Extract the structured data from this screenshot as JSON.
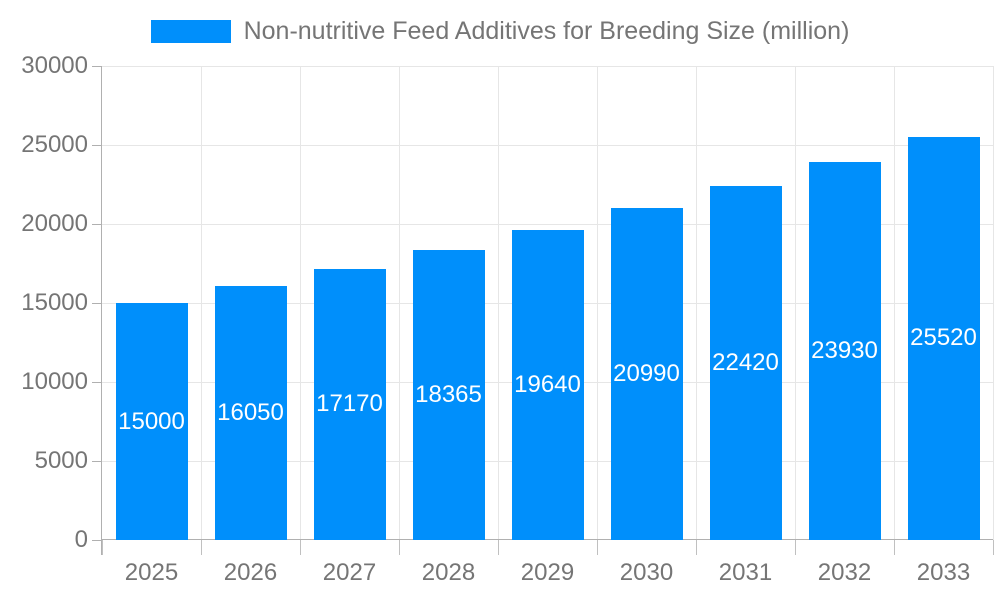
{
  "chart_data": {
    "type": "bar",
    "title": "Non-nutritive Feed Additives for Breeding Size (million)",
    "legend_position": "top",
    "categories": [
      "2025",
      "2026",
      "2027",
      "2028",
      "2029",
      "2030",
      "2031",
      "2032",
      "2033"
    ],
    "values": [
      15000,
      16050,
      17170,
      18365,
      19640,
      20990,
      22420,
      23930,
      25520
    ],
    "value_labels": [
      "15000",
      "16050",
      "17170",
      "18365",
      "19640",
      "20990",
      "22420",
      "23930",
      "25520"
    ],
    "xlabel": "",
    "ylabel": "",
    "ylim": [
      0,
      30000
    ],
    "y_tick_step": 5000,
    "y_tick_labels": [
      "0",
      "5000",
      "10000",
      "15000",
      "20000",
      "25000",
      "30000"
    ],
    "grid": "on",
    "colors": {
      "bar": "#008FFB",
      "bar_value_label": "#ffffff",
      "gridline": "#e6e6e6",
      "axis_line": "#b0b0b0",
      "tick": "#c0c0c0",
      "axis_text": "#757575",
      "background": "#ffffff"
    }
  }
}
